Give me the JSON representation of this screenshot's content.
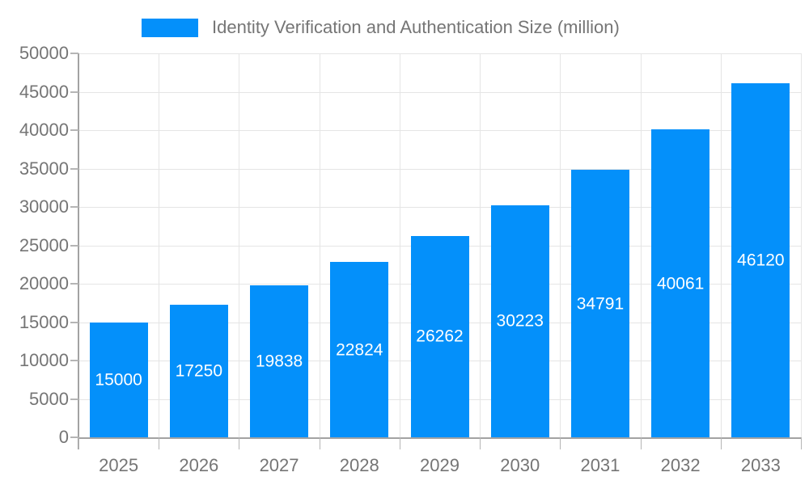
{
  "legend": {
    "label": "Identity Verification and Authentication Size (million)"
  },
  "chart_data": {
    "type": "bar",
    "title": "Identity Verification and Authentication Size (million)",
    "categories": [
      "2025",
      "2026",
      "2027",
      "2028",
      "2029",
      "2030",
      "2031",
      "2032",
      "2033"
    ],
    "values": [
      15000,
      17250,
      19838,
      22824,
      26262,
      30223,
      34791,
      40061,
      46120
    ],
    "xlabel": "",
    "ylabel": "",
    "ylim": [
      0,
      50000
    ],
    "ytick_step": 5000,
    "ytick_labels": [
      "0",
      "5000",
      "10000",
      "15000",
      "20000",
      "25000",
      "30000",
      "35000",
      "40000",
      "45000",
      "50000"
    ],
    "grid": true,
    "legend_position": "top",
    "value_labels": "inside-center",
    "colors": {
      "bar": "#0490fa",
      "value_label": "#ffffff",
      "axis_text": "#757575",
      "gridline": "#e5e5e5",
      "axis_line": "#a3a3a3",
      "tick_mark": "#b5b5b5",
      "background": "#ffffff"
    }
  }
}
